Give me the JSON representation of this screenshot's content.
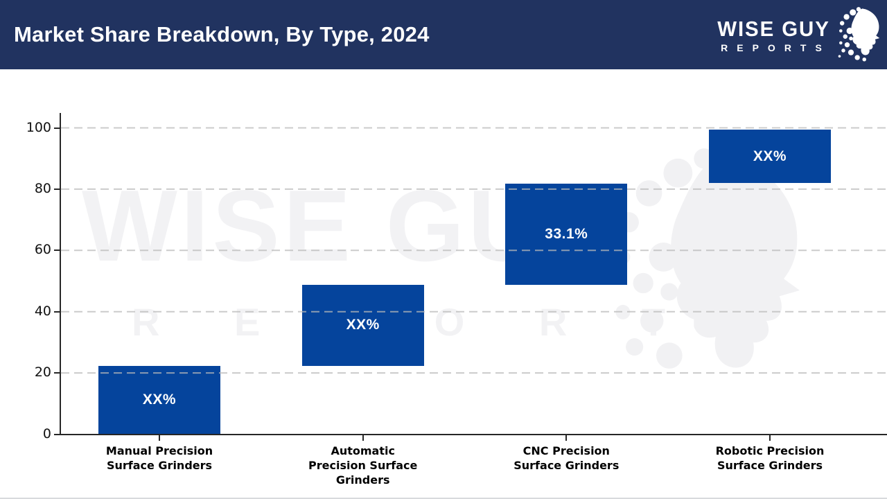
{
  "header": {
    "title": "Market Share Breakdown, By Type, 2024",
    "logo": {
      "line1": "WISE GUY",
      "line2": "REPORTS"
    }
  },
  "watermark": {
    "line1": "WISE GUY",
    "line2": "R E P O R T S"
  },
  "chart_data": {
    "type": "bar",
    "subtype": "floating-waterfall",
    "title": "Market Share Breakdown, By Type, 2024",
    "categories": [
      [
        "Manual Precision",
        "Surface Grinders"
      ],
      [
        "Automatic",
        "Precision Surface",
        "Grinders"
      ],
      [
        "CNC Precision",
        "Surface Grinders"
      ],
      [
        "Robotic Precision",
        "Surface Grinders"
      ]
    ],
    "bars": [
      {
        "category": "Manual Precision Surface Grinders",
        "start": 0,
        "end": 22.3,
        "label": "XX%"
      },
      {
        "category": "Automatic Precision Surface Grinders",
        "start": 22.3,
        "end": 48.8,
        "label": "XX%"
      },
      {
        "category": "CNC Precision Surface Grinders",
        "start": 48.8,
        "end": 81.9,
        "label": "33.1%"
      },
      {
        "category": "Robotic Precision Surface Grinders",
        "start": 81.9,
        "end": 99.5,
        "label": "XX%"
      }
    ],
    "yticks": [
      0,
      20,
      40,
      60,
      80,
      100
    ],
    "ylim": [
      0,
      105
    ],
    "grid": "horizontal-dashed",
    "legend": "none",
    "xlabel": "",
    "ylabel": ""
  },
  "colors": {
    "header_bg": "#213360",
    "bar": "#05449c",
    "value_label": "#ffffff",
    "grid_dash": "#c9c9c9",
    "axis": "#262626",
    "watermark": "#f2f2f4"
  }
}
